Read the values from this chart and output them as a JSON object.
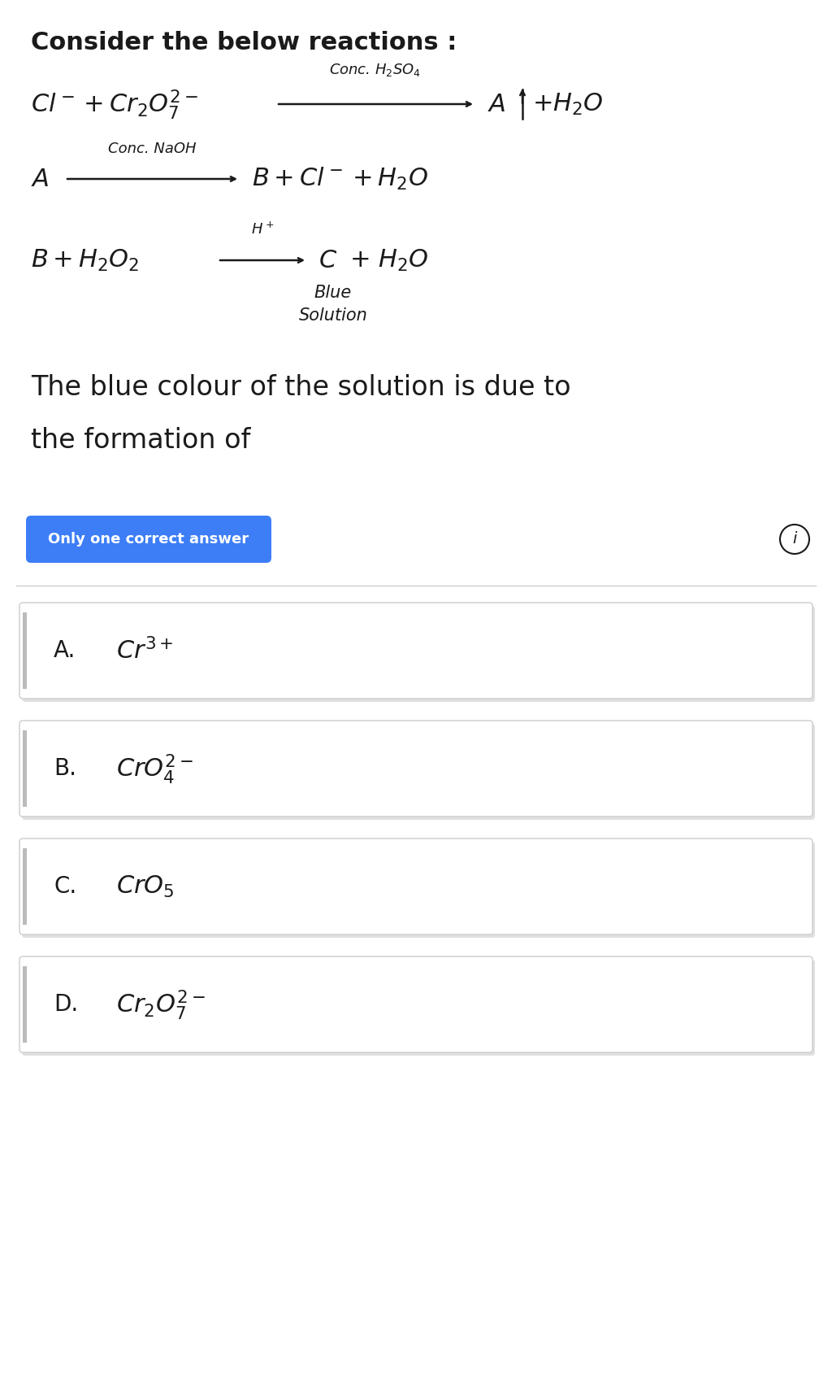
{
  "bg_color": "#ffffff",
  "title_text": "Consider the below reactions :",
  "text_color": "#1a1a1a",
  "badge_text": "Only one correct answer",
  "badge_bg": "#3d7ef7",
  "badge_text_color": "#ffffff",
  "options": [
    {
      "label": "A.",
      "formula": "$Cr^{3+}$"
    },
    {
      "label": "B.",
      "formula": "$CrO_4^{2-}$"
    },
    {
      "label": "C.",
      "formula": "$CrO_5$"
    },
    {
      "label": "D.",
      "formula": "$Cr_2O_7^{2-}$"
    }
  ],
  "option_box_color": "#ffffff",
  "option_box_edge": "#cccccc",
  "sep_line_color": "#cccccc",
  "question_text1": "The blue colour of the solution is due to",
  "question_text2": "the formation of"
}
